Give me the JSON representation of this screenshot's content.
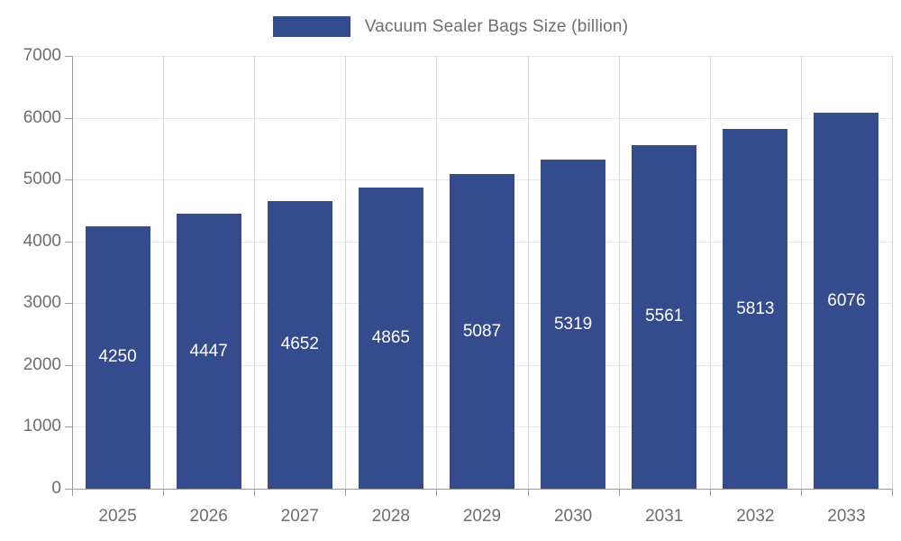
{
  "chart_data": {
    "type": "bar",
    "title": "Vacuum Sealer Bags Size (billion)",
    "categories": [
      "2025",
      "2026",
      "2027",
      "2028",
      "2029",
      "2030",
      "2031",
      "2032",
      "2033"
    ],
    "values": [
      4250,
      4447,
      4652,
      4865,
      5087,
      5319,
      5561,
      5813,
      6076
    ],
    "xlabel": "",
    "ylabel": "",
    "ylim": [
      0,
      7000
    ],
    "ytick_step": 1000,
    "ytick_labels": [
      "0",
      "1000",
      "2000",
      "3000",
      "4000",
      "5000",
      "6000",
      "7000"
    ],
    "grid": true,
    "legend_position": "top",
    "colors": {
      "bar_fill": "#344b8d",
      "bar_value_text": "#ffffff",
      "axis_text": "#6e6e6e",
      "legend_text": "#6e6e6e",
      "grid_line": "#d6d6d6",
      "axis_line": "#9a9a9a",
      "background": "#ffffff"
    }
  }
}
